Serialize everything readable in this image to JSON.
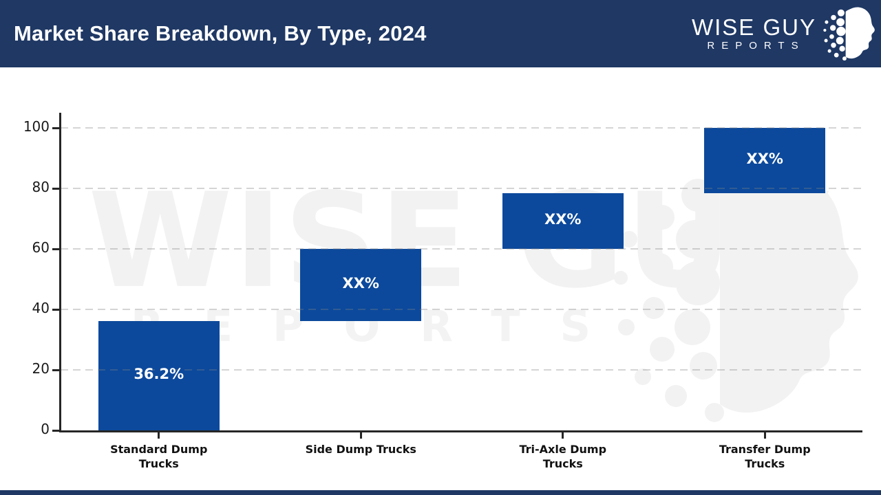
{
  "header": {
    "title": "Market Share Breakdown, By Type, 2024",
    "bg_color": "#1f3864",
    "logo": {
      "wordmark": "WISE GUY",
      "subtext": "REPORTS"
    }
  },
  "watermark": {
    "wordmark": "WISE GUY",
    "subtext": "REPORTS"
  },
  "chart_data": {
    "type": "bar",
    "subtype": "waterfall",
    "title": "Market Share Breakdown, By Type, 2024",
    "xlabel": "",
    "ylabel": "",
    "ylim": [
      0,
      105
    ],
    "yticks": [
      0,
      20,
      40,
      60,
      80,
      100
    ],
    "grid": "horizontal-dashed",
    "legend": "none",
    "bar_color": "#0c499c",
    "bar_label_color": "#ffffff",
    "axis_color": "#262626",
    "categories": [
      {
        "lines": [
          "Standard Dump",
          "Trucks"
        ]
      },
      {
        "lines": [
          "Side Dump Trucks"
        ]
      },
      {
        "lines": [
          "Tri-Axle Dump",
          "Trucks"
        ]
      },
      {
        "lines": [
          "Transfer Dump",
          "Trucks"
        ]
      }
    ],
    "bars": [
      {
        "category": "Standard Dump Trucks",
        "start": 0,
        "end": 36.2,
        "label": "36.2%"
      },
      {
        "category": "Side Dump Trucks",
        "start": 36.2,
        "end": 60,
        "label": "XX%"
      },
      {
        "category": "Tri-Axle Dump Trucks",
        "start": 60,
        "end": 78.5,
        "label": "XX%"
      },
      {
        "category": "Transfer Dump Trucks",
        "start": 78.5,
        "end": 100,
        "label": "XX%"
      }
    ]
  }
}
